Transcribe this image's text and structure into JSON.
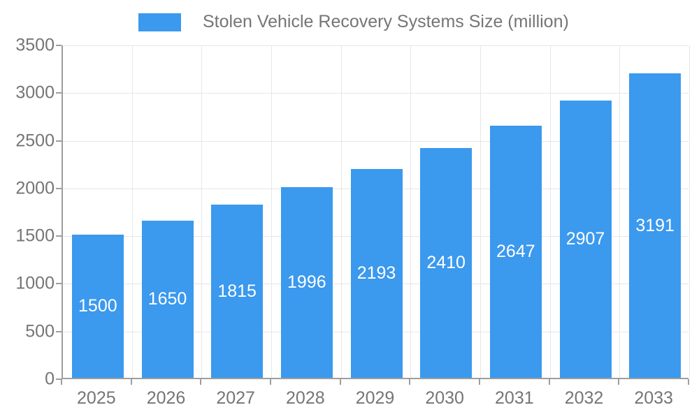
{
  "legend": {
    "label": "Stolen Vehicle Recovery Systems Size (million)",
    "swatch_color": "#3b99ee"
  },
  "chart_data": {
    "type": "bar",
    "title": "Stolen Vehicle Recovery Systems Size (million)",
    "categories": [
      "2025",
      "2026",
      "2027",
      "2028",
      "2029",
      "2030",
      "2031",
      "2032",
      "2033"
    ],
    "values": [
      1500,
      1650,
      1815,
      1996,
      2193,
      2410,
      2647,
      2907,
      3191
    ],
    "xlabel": "",
    "ylabel": "",
    "ylim": [
      0,
      3500
    ],
    "yticks": [
      0,
      500,
      1000,
      1500,
      2000,
      2500,
      3000,
      3500
    ],
    "grid": "on",
    "legend_position": "top",
    "bar_color": "#3b99ee",
    "bar_label_color": "#ffffff",
    "axis_text_color": "#757575",
    "grid_color": "#e6e6e6",
    "axis_line_color": "#9e9e9e",
    "background_color": "#ffffff"
  }
}
